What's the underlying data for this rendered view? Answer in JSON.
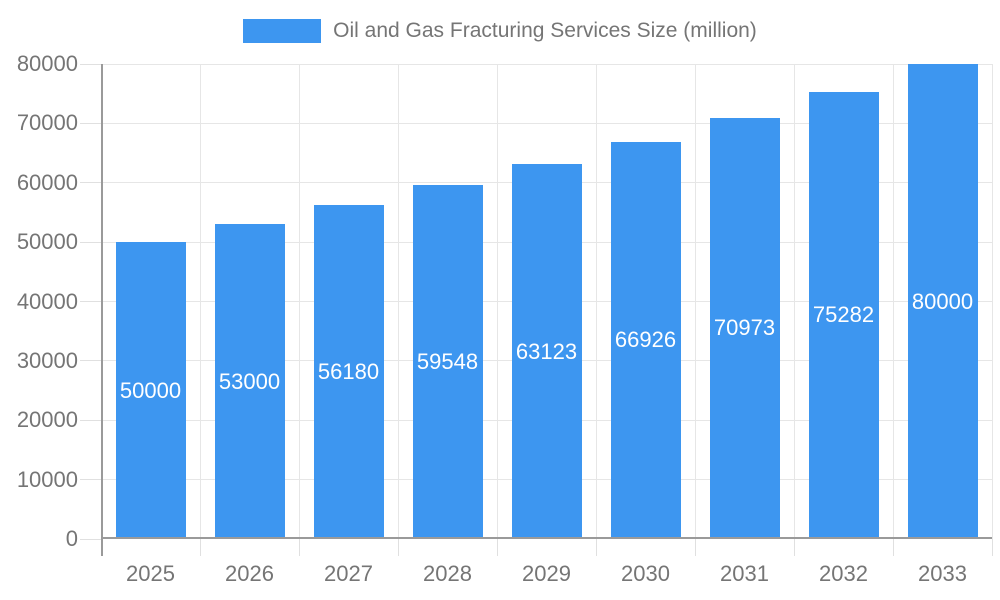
{
  "chart_data": {
    "type": "bar",
    "title": "Oil and Gas Fracturing Services Size (million)",
    "categories": [
      "2025",
      "2026",
      "2027",
      "2028",
      "2029",
      "2030",
      "2031",
      "2032",
      "2033"
    ],
    "values": [
      50000,
      53000,
      56180,
      59548,
      63123,
      66926,
      70973,
      75282,
      80000
    ],
    "xlabel": "",
    "ylabel": "",
    "ylim": [
      0,
      80000
    ],
    "yticks": [
      0,
      10000,
      20000,
      30000,
      40000,
      50000,
      60000,
      70000,
      80000
    ],
    "grid": true,
    "legend_position": "top-center",
    "bar_color": "#3D96F0",
    "bar_label_color": "#FFFFFF",
    "gridline_color": "#E6E6E6",
    "tick_color": "#E0E0E0",
    "axis_line_color": "#9A9A9A",
    "axis_text_color": "#757575"
  }
}
